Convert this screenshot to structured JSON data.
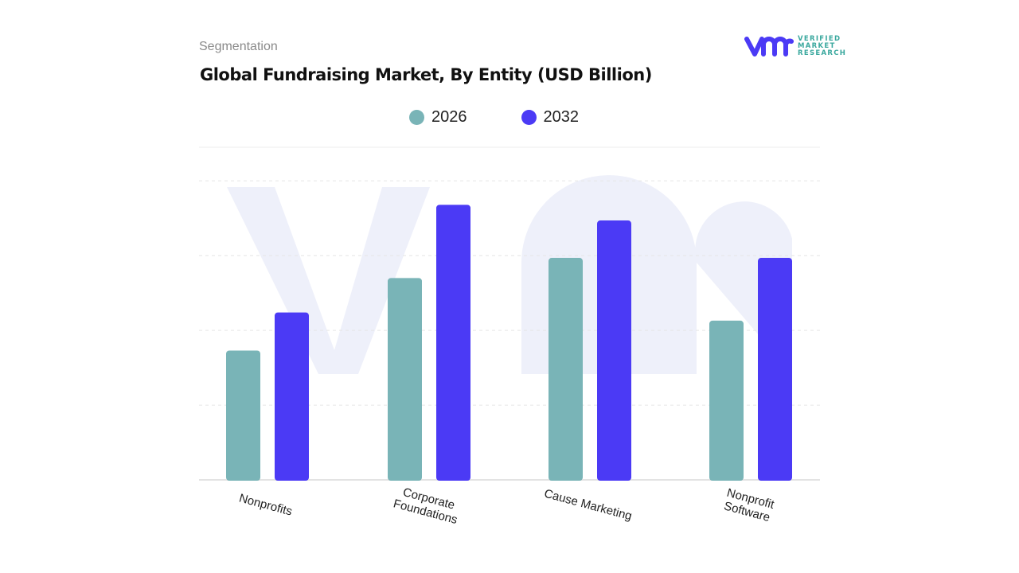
{
  "header": {
    "segment_label": "Segmentation",
    "title": "Global Fundraising Market, By Entity (USD Billion)"
  },
  "logo": {
    "lines": [
      "VERIFIED",
      "MARKET",
      "RESEARCH"
    ],
    "color": "#4b3af5",
    "text_color": "#3aa89e"
  },
  "chart_data": {
    "type": "bar",
    "title": "Global Fundraising Market, By Entity (USD Billion)",
    "categories": [
      "Nonprofits",
      "Corporate Foundations",
      "Cause Marketing",
      "Nonprofit Software"
    ],
    "category_lines": [
      [
        "Nonprofits"
      ],
      [
        "Corporate",
        "Foundations"
      ],
      [
        "Cause Marketing"
      ],
      [
        "Nonprofit",
        "Software"
      ]
    ],
    "series": [
      {
        "name": "2026",
        "color": "#79b4b7",
        "values": [
          1.73,
          2.7,
          2.97,
          2.13
        ]
      },
      {
        "name": "2032",
        "color": "#4b3af5",
        "values": [
          2.24,
          3.68,
          3.47,
          2.97
        ]
      }
    ],
    "ylim": [
      0,
      4.45
    ],
    "grid": true,
    "y_tick_labels_shown": false,
    "legend_position": "top-center",
    "xlabel": "",
    "ylabel": ""
  }
}
